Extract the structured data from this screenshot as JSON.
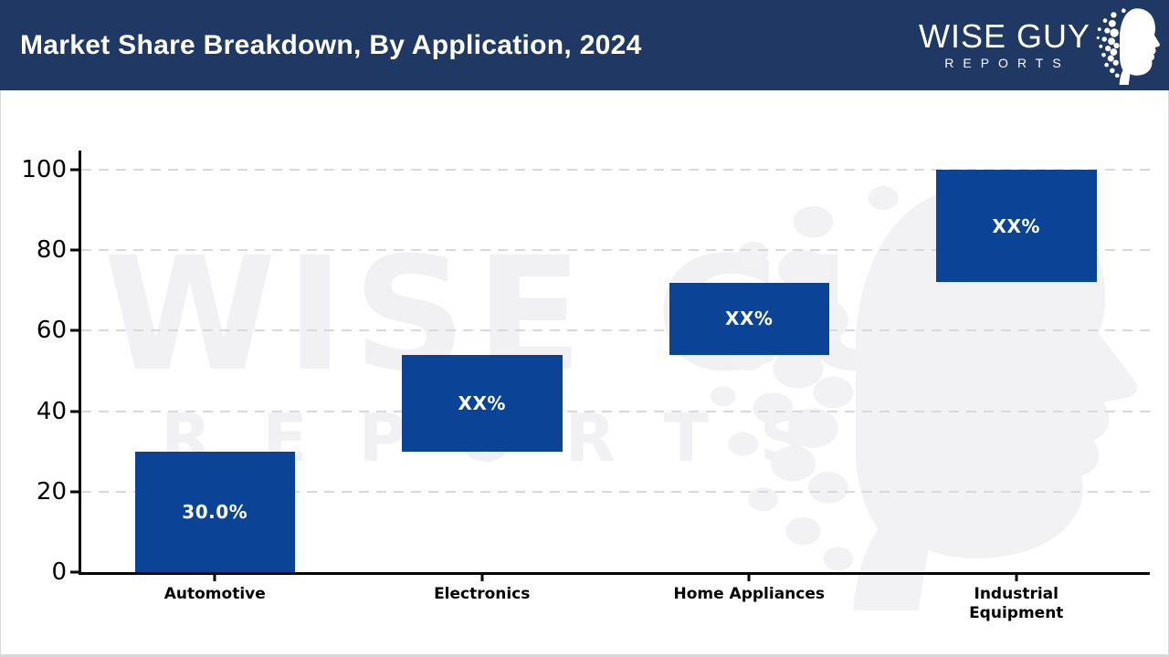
{
  "header": {
    "title": "Market Share Breakdown, By Application, 2024",
    "bg_color": "#1f3864",
    "logo": {
      "line1": "WISE GUY",
      "line2": "REPORTS"
    }
  },
  "watermark": {
    "line1": "WISE GUY",
    "line2": "REPORTS"
  },
  "chart_data": {
    "type": "bar",
    "subtype": "waterfall",
    "title": "Market Share Breakdown, By Application, 2024",
    "categories": [
      "Automotive",
      "Electronics",
      "Home Appliances",
      "Industrial\nEquipment"
    ],
    "segments": [
      {
        "category": "Automotive",
        "start": 0,
        "end": 30,
        "label": "30.0%"
      },
      {
        "category": "Electronics",
        "start": 30,
        "end": 54,
        "label": "XX%"
      },
      {
        "category": "Home Appliances",
        "start": 54,
        "end": 72,
        "label": "XX%"
      },
      {
        "category": "Industrial Equipment",
        "start": 72,
        "end": 100,
        "label": "XX%"
      }
    ],
    "xlabel": "",
    "ylabel": "",
    "ylim": [
      0,
      100
    ],
    "yticks": [
      0,
      20,
      40,
      60,
      80,
      100
    ],
    "grid": "horizontal-dashed",
    "legend": "none",
    "bar_color": "#0b4397",
    "bar_label_color": "#ffffff",
    "axis_color": "#000000",
    "gridline_color": "#d9d9d9"
  }
}
